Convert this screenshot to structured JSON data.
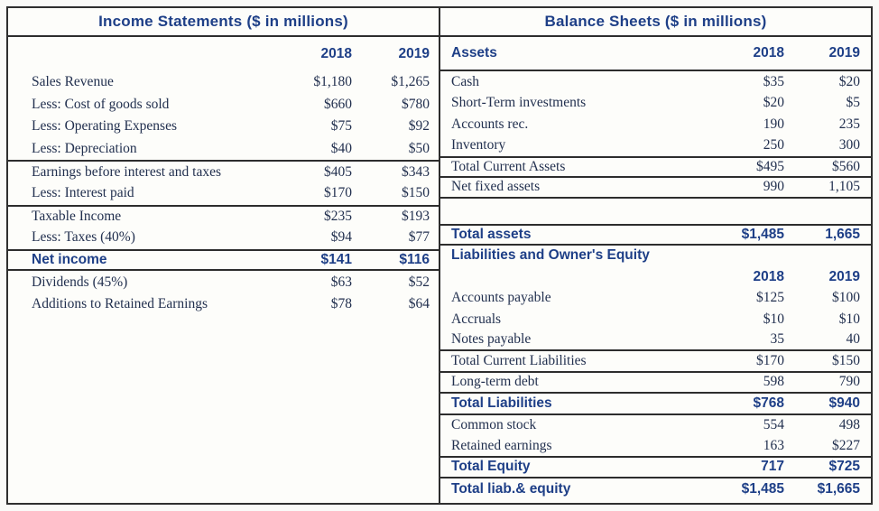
{
  "colors": {
    "accent": "#1e3f87",
    "ink": "#22304f",
    "line": "#2d2d2d",
    "paper": "#fdfdfa"
  },
  "income": {
    "title": "Income Statements ($ in millions)",
    "columns": [
      "2018",
      "2019"
    ],
    "rows": [
      {
        "label": "Sales Revenue",
        "y2018": "$1,180",
        "y2019": "$1,265"
      },
      {
        "label": "Less: Cost of goods sold",
        "y2018": "$660",
        "y2019": "$780"
      },
      {
        "label": "Less: Operating Expenses",
        "y2018": "$75",
        "y2019": "$92"
      },
      {
        "label": "Less: Depreciation",
        "y2018": "$40",
        "y2019": "$50"
      },
      {
        "label": "Earnings before interest and taxes",
        "y2018": "$405",
        "y2019": "$343"
      },
      {
        "label": "Less: Interest paid",
        "y2018": "$170",
        "y2019": "$150"
      },
      {
        "label": "Taxable Income",
        "y2018": "$235",
        "y2019": "$193"
      },
      {
        "label": "Less: Taxes (40%)",
        "y2018": "$94",
        "y2019": "$77"
      },
      {
        "label": "Net income",
        "y2018": "$141",
        "y2019": "$116"
      },
      {
        "label": "Dividends (45%)",
        "y2018": "$63",
        "y2019": "$52"
      },
      {
        "label": "Additions to Retained Earnings",
        "y2018": "$78",
        "y2019": "$64"
      }
    ]
  },
  "balance": {
    "title": "Balance Sheets ($ in millions)",
    "assets_label": "Assets",
    "columns": [
      "2018",
      "2019"
    ],
    "assets_rows": [
      {
        "label": "Cash",
        "y2018": "$35",
        "y2019": "$20"
      },
      {
        "label": "Short-Term investments",
        "y2018": "$20",
        "y2019": "$5"
      },
      {
        "label": "Accounts rec.",
        "y2018": "190",
        "y2019": "235"
      },
      {
        "label": "Inventory",
        "y2018": "250",
        "y2019": "300"
      },
      {
        "label": "Total Current Assets",
        "y2018": "$495",
        "y2019": "$560"
      },
      {
        "label": "Net fixed assets",
        "y2018": "990",
        "y2019": "1,105"
      }
    ],
    "total_assets": {
      "label": "Total assets",
      "y2018": "$1,485",
      "y2019": "1,665"
    },
    "liabilities_header": "Liabilities and Owner's Equity",
    "liab_rows": [
      {
        "label": "Accounts payable",
        "y2018": "$125",
        "y2019": "$100"
      },
      {
        "label": "Accruals",
        "y2018": "$10",
        "y2019": "$10"
      },
      {
        "label": "Notes payable",
        "y2018": "35",
        "y2019": "40"
      },
      {
        "label": "Total Current Liabilities",
        "y2018": "$170",
        "y2019": "$150"
      },
      {
        "label": "Long-term debt",
        "y2018": "598",
        "y2019": "790"
      },
      {
        "label": "Total Liabilities",
        "y2018": "$768",
        "y2019": "$940"
      },
      {
        "label": "Common stock",
        "y2018": "554",
        "y2019": "498"
      },
      {
        "label": "Retained earnings",
        "y2018": "163",
        "y2019": "$227"
      },
      {
        "label": "Total Equity",
        "y2018": "717",
        "y2019": "$725"
      },
      {
        "label": "Total liab.& equity",
        "y2018": "$1,485",
        "y2019": "$1,665"
      }
    ]
  }
}
